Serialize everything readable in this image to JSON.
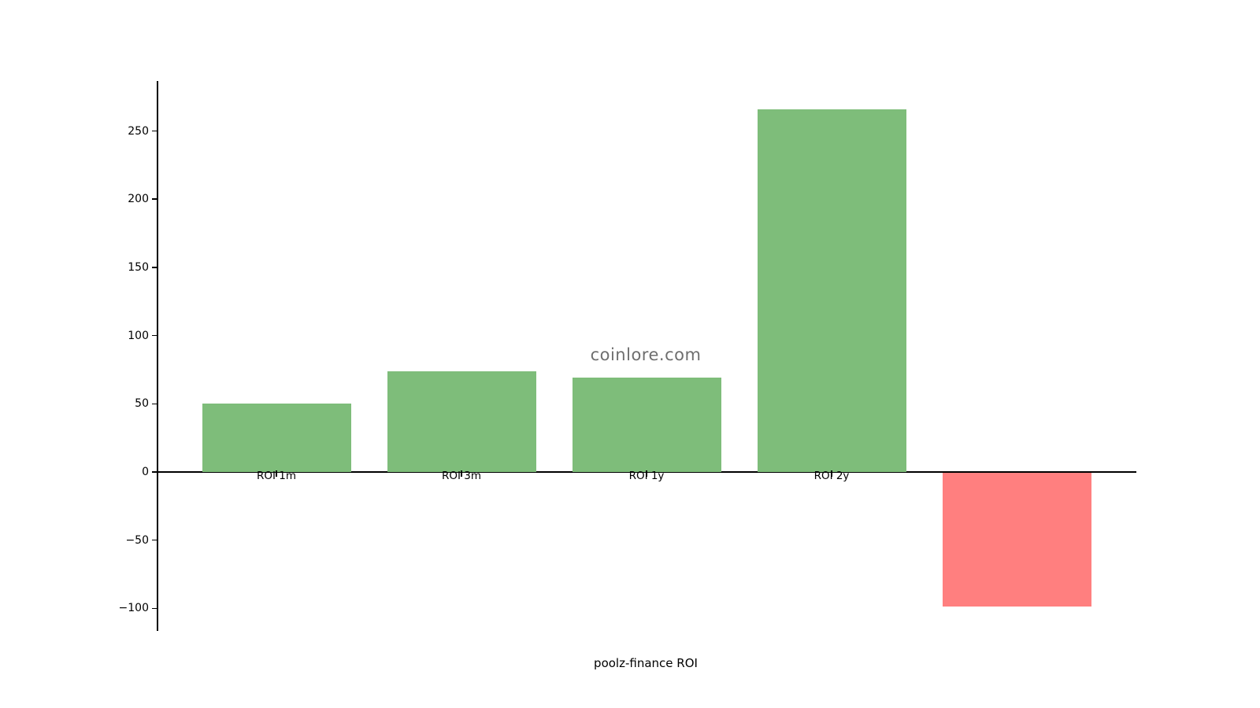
{
  "chart_data": {
    "type": "bar",
    "title": "poolz-finance ROI",
    "watermark": "coinlore.com",
    "categories": [
      "ROI 1m",
      "ROI 3m",
      "ROI 1y",
      "ROI 2y",
      ""
    ],
    "values": [
      50,
      74,
      69,
      266,
      -98
    ],
    "xlabel": "",
    "ylabel": "",
    "ylim": [
      -120,
      287
    ],
    "yticks": [
      250,
      200,
      150,
      100,
      50,
      0,
      -50,
      -100
    ],
    "ytick_labels": [
      "250",
      "200",
      "150",
      "100",
      "50",
      "0",
      "−50",
      "−100"
    ],
    "grid": false,
    "legend_position": "none",
    "colors": {
      "positive_bar": "#7ebd7a",
      "negative_bar": "#ff7f7f",
      "axis": "#000000",
      "tick_text": "#000000",
      "watermark_text": "#6e6e6e",
      "title_text": "#000000",
      "background": "#ffffff"
    }
  }
}
